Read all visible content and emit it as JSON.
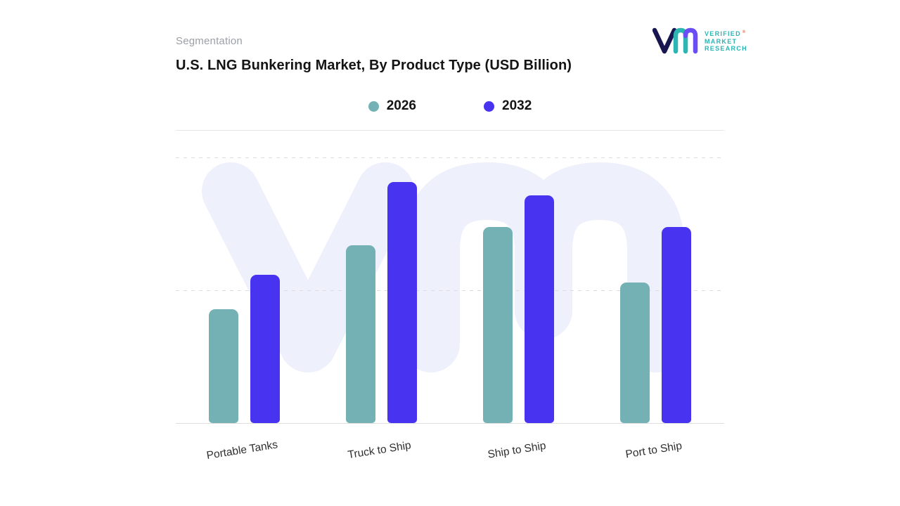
{
  "page": {
    "eyebrow": "Segmentation",
    "title": "U.S. LNG Bunkering Market, By Product Type (USD Billion)"
  },
  "logo": {
    "line1": "VERIFIED",
    "line2": "MARKET",
    "line3": "RESEARCH",
    "registered": "®",
    "text_color": "#27b6b4",
    "mark_navy": "#171650",
    "mark_teal": "#2cb5b2",
    "mark_purple": "#6a4df5"
  },
  "legend": {
    "items": [
      {
        "label": "2026",
        "color": "#74b1b4"
      },
      {
        "label": "2032",
        "color": "#4733f0"
      }
    ]
  },
  "chart_data": {
    "type": "bar",
    "title": "U.S. LNG Bunkering Market, By Product Type (USD Billion)",
    "unit": "USD Billion",
    "categories": [
      "Portable Tanks",
      "Truck to Ship",
      "Ship to Ship",
      "Port to Ship"
    ],
    "series": [
      {
        "name": "2026",
        "color": "#74b1b4",
        "values": [
          0.43,
          0.67,
          0.74,
          0.53
        ]
      },
      {
        "name": "2032",
        "color": "#4733f0",
        "values": [
          0.56,
          0.91,
          0.86,
          0.74
        ]
      }
    ],
    "xlabel": "",
    "ylabel": "",
    "ylim": [
      0,
      1
    ],
    "gridlines": [
      0.5,
      1.0
    ],
    "grid": "dashed-horizontal",
    "legend_position": "top-center",
    "watermark_color": "#eef0fb"
  }
}
